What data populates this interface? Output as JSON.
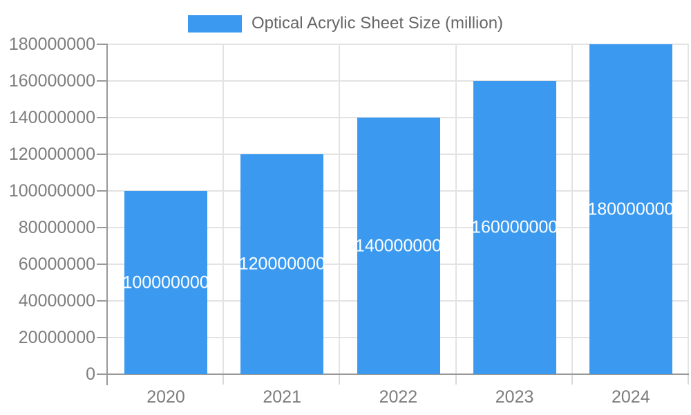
{
  "legend": {
    "label": "Optical Acrylic Sheet Size (million)"
  },
  "chart_data": {
    "type": "bar",
    "title": "Optical Acrylic Sheet Size (million)",
    "series": [
      {
        "name": "Optical Acrylic Sheet Size (million)",
        "values": [
          100000000,
          120000000,
          140000000,
          160000000,
          180000000
        ]
      }
    ],
    "categories": [
      "2020",
      "2021",
      "2022",
      "2023",
      "2024"
    ],
    "data_labels": [
      "100000000",
      "120000000",
      "140000000",
      "160000000",
      "180000000"
    ],
    "xlabel": "",
    "ylabel": "",
    "ylim": [
      0,
      180000000
    ],
    "y_tick_labels": [
      "0",
      "20000000",
      "40000000",
      "60000000",
      "80000000",
      "100000000",
      "120000000",
      "140000000",
      "160000000",
      "180000000"
    ],
    "grid": true,
    "legend_position": "top-center",
    "bar_label_position": "inside-center"
  },
  "colors": {
    "accent": "#3b9af0",
    "axis_line": "#999999",
    "gridline": "#e3e3e3",
    "tick": "#d9d9d9",
    "axis_label": "#7d7d7d",
    "legend_text": "#666666",
    "bar_label": "#ffffff"
  }
}
